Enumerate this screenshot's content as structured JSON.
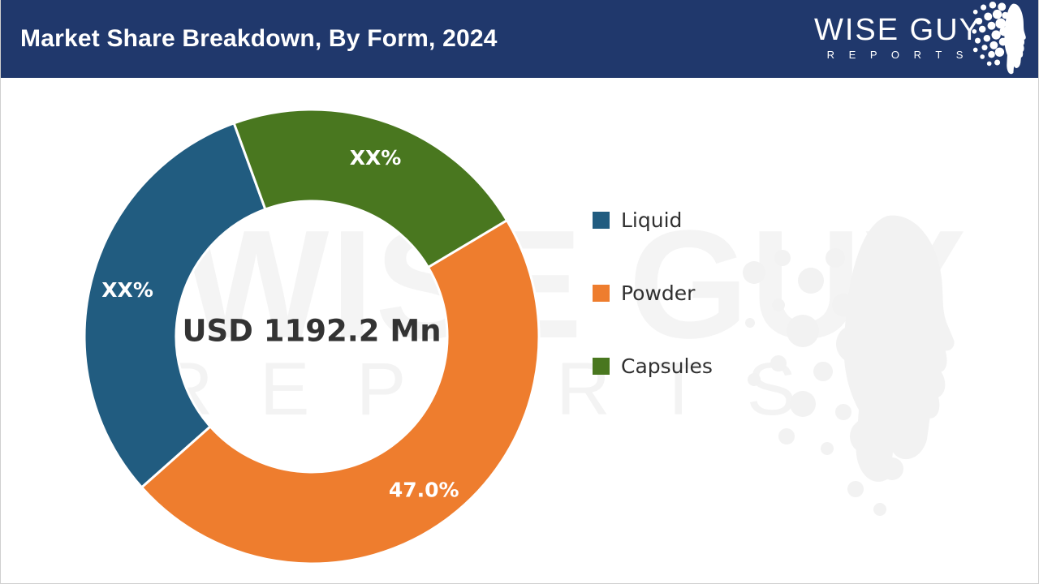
{
  "page": {
    "background": "#ffffff",
    "border_color": "#d0d0d0"
  },
  "header": {
    "bg_color": "#20386C",
    "title": "Market Share Breakdown, By Form, 2024",
    "logo": {
      "line1": "WISE GUY",
      "line2": "R E P O R T S"
    }
  },
  "watermark": {
    "line1": "WISE GUY",
    "line2": "R E P O R T S",
    "color": "#f4f4f4"
  },
  "chart_data": {
    "type": "pie",
    "subtype": "donut",
    "title": "Market Share Breakdown, By Form, 2024",
    "center_label": "USD 1192.2 Mn",
    "legend_position": "right",
    "start_angle_deg": 110,
    "direction": "counterclockwise",
    "segments": [
      {
        "name": "Liquid",
        "color": "#215C80",
        "displayed_label": "XX%",
        "value_pct": 31.0,
        "value_masked": true
      },
      {
        "name": "Powder",
        "color": "#EE7D2E",
        "displayed_label": "47.0%",
        "value_pct": 47.0,
        "value_masked": false
      },
      {
        "name": "Capsules",
        "color": "#49771F",
        "displayed_label": "XX%",
        "value_pct": 22.0,
        "value_masked": true
      }
    ]
  }
}
